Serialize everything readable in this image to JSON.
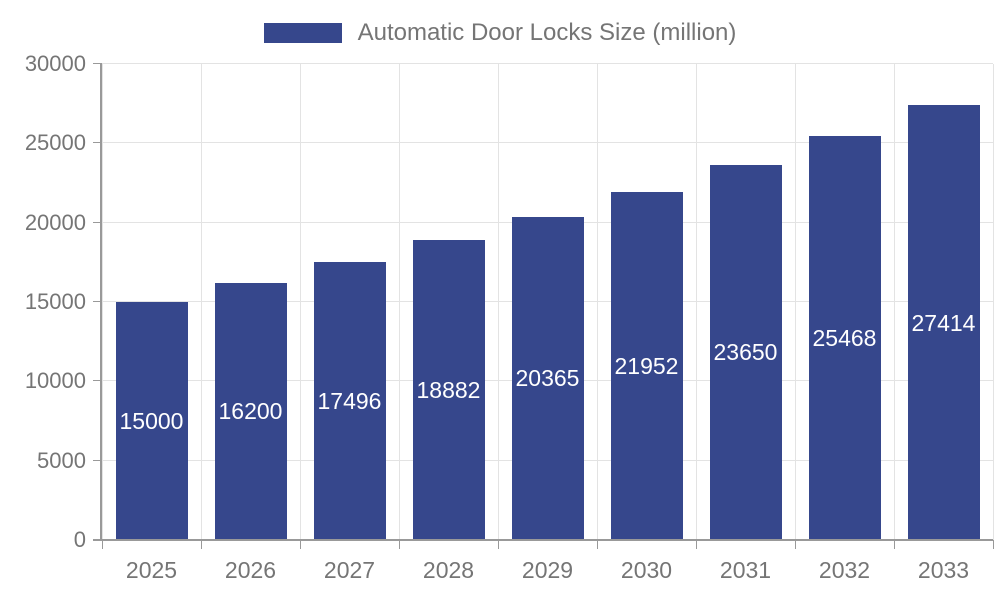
{
  "legend": {
    "label": "Automatic Door Locks Size (million)"
  },
  "colors": {
    "bar": "#36478c",
    "bar_label": "#ffffff",
    "axis_label": "#757575",
    "axis_line": "#999999",
    "grid": "#e3e3e3",
    "background": "#ffffff"
  },
  "chart_data": {
    "type": "bar",
    "title": "",
    "xlabel": "",
    "ylabel": "",
    "series_name": "Automatic Door Locks Size (million)",
    "categories": [
      "2025",
      "2026",
      "2027",
      "2028",
      "2029",
      "2030",
      "2031",
      "2032",
      "2033"
    ],
    "values": [
      15000,
      16200,
      17496,
      18882,
      20365,
      21952,
      23650,
      25468,
      27414
    ],
    "ylim": [
      0,
      30000
    ],
    "yticks": [
      0,
      5000,
      10000,
      15000,
      20000,
      25000,
      30000
    ],
    "grid": true,
    "legend_position": "top-center",
    "value_labels": "inside-center"
  }
}
